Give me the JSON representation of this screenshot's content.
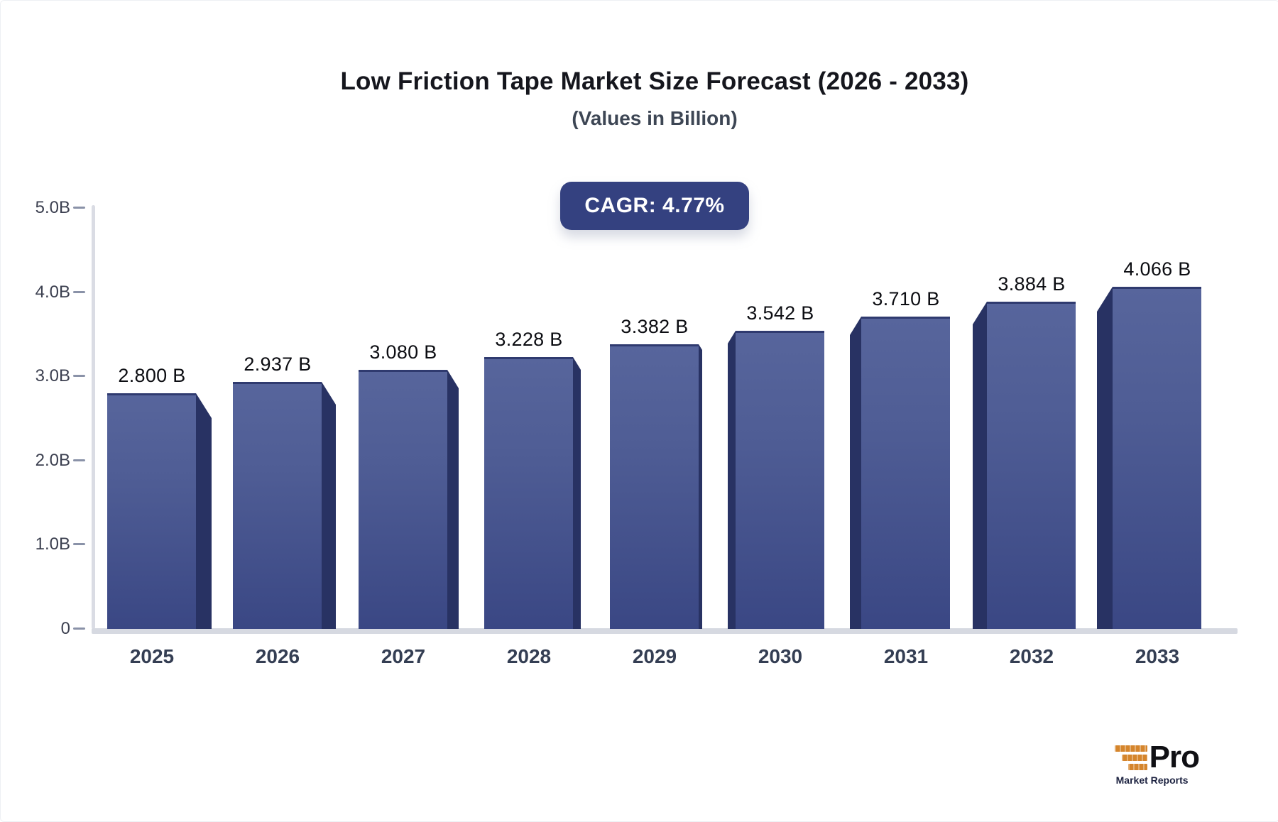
{
  "title": "Low Friction Tape Market Size Forecast (2026 - 2033)",
  "subtitle": "(Values in Billion)",
  "cagr_badge": "CAGR: 4.77%",
  "logo": {
    "name": "Pro",
    "tagline": "Market Reports",
    "bar_color": "#d5852c"
  },
  "colors": {
    "accent": "#344180",
    "bar_top": "#57659c",
    "bar_bottom": "#3a4784",
    "bar_side": "#283263",
    "axis_line": "#dadce4",
    "baseline": "#d6d9e1"
  },
  "chart_data": {
    "type": "bar",
    "title": "Low Friction Tape Market Size Forecast (2026 - 2033)",
    "subtitle": "(Values in Billion)",
    "annotation": "CAGR: 4.77%",
    "categories": [
      "2025",
      "2026",
      "2027",
      "2028",
      "2029",
      "2030",
      "2031",
      "2032",
      "2033"
    ],
    "values": [
      2.8,
      2.937,
      3.08,
      3.228,
      3.382,
      3.542,
      3.71,
      3.884,
      4.066
    ],
    "bar_labels": [
      "2.800 B",
      "2.937 B",
      "3.080 B",
      "3.228 B",
      "3.382 B",
      "3.542 B",
      "3.710 B",
      "3.884 B",
      "4.066 B"
    ],
    "xlabel": "",
    "ylabel": "",
    "ylim": [
      0,
      5
    ],
    "y_ticks": [
      {
        "label": "5.0B",
        "value": 5
      },
      {
        "label": "4.0B",
        "value": 4
      },
      {
        "label": "3.0B",
        "value": 3
      },
      {
        "label": "2.0B",
        "value": 2
      },
      {
        "label": "1.0B",
        "value": 1
      },
      {
        "label": "0",
        "value": 0
      }
    ],
    "grid": false,
    "legend": false,
    "style": "3d-perspective-bars"
  }
}
